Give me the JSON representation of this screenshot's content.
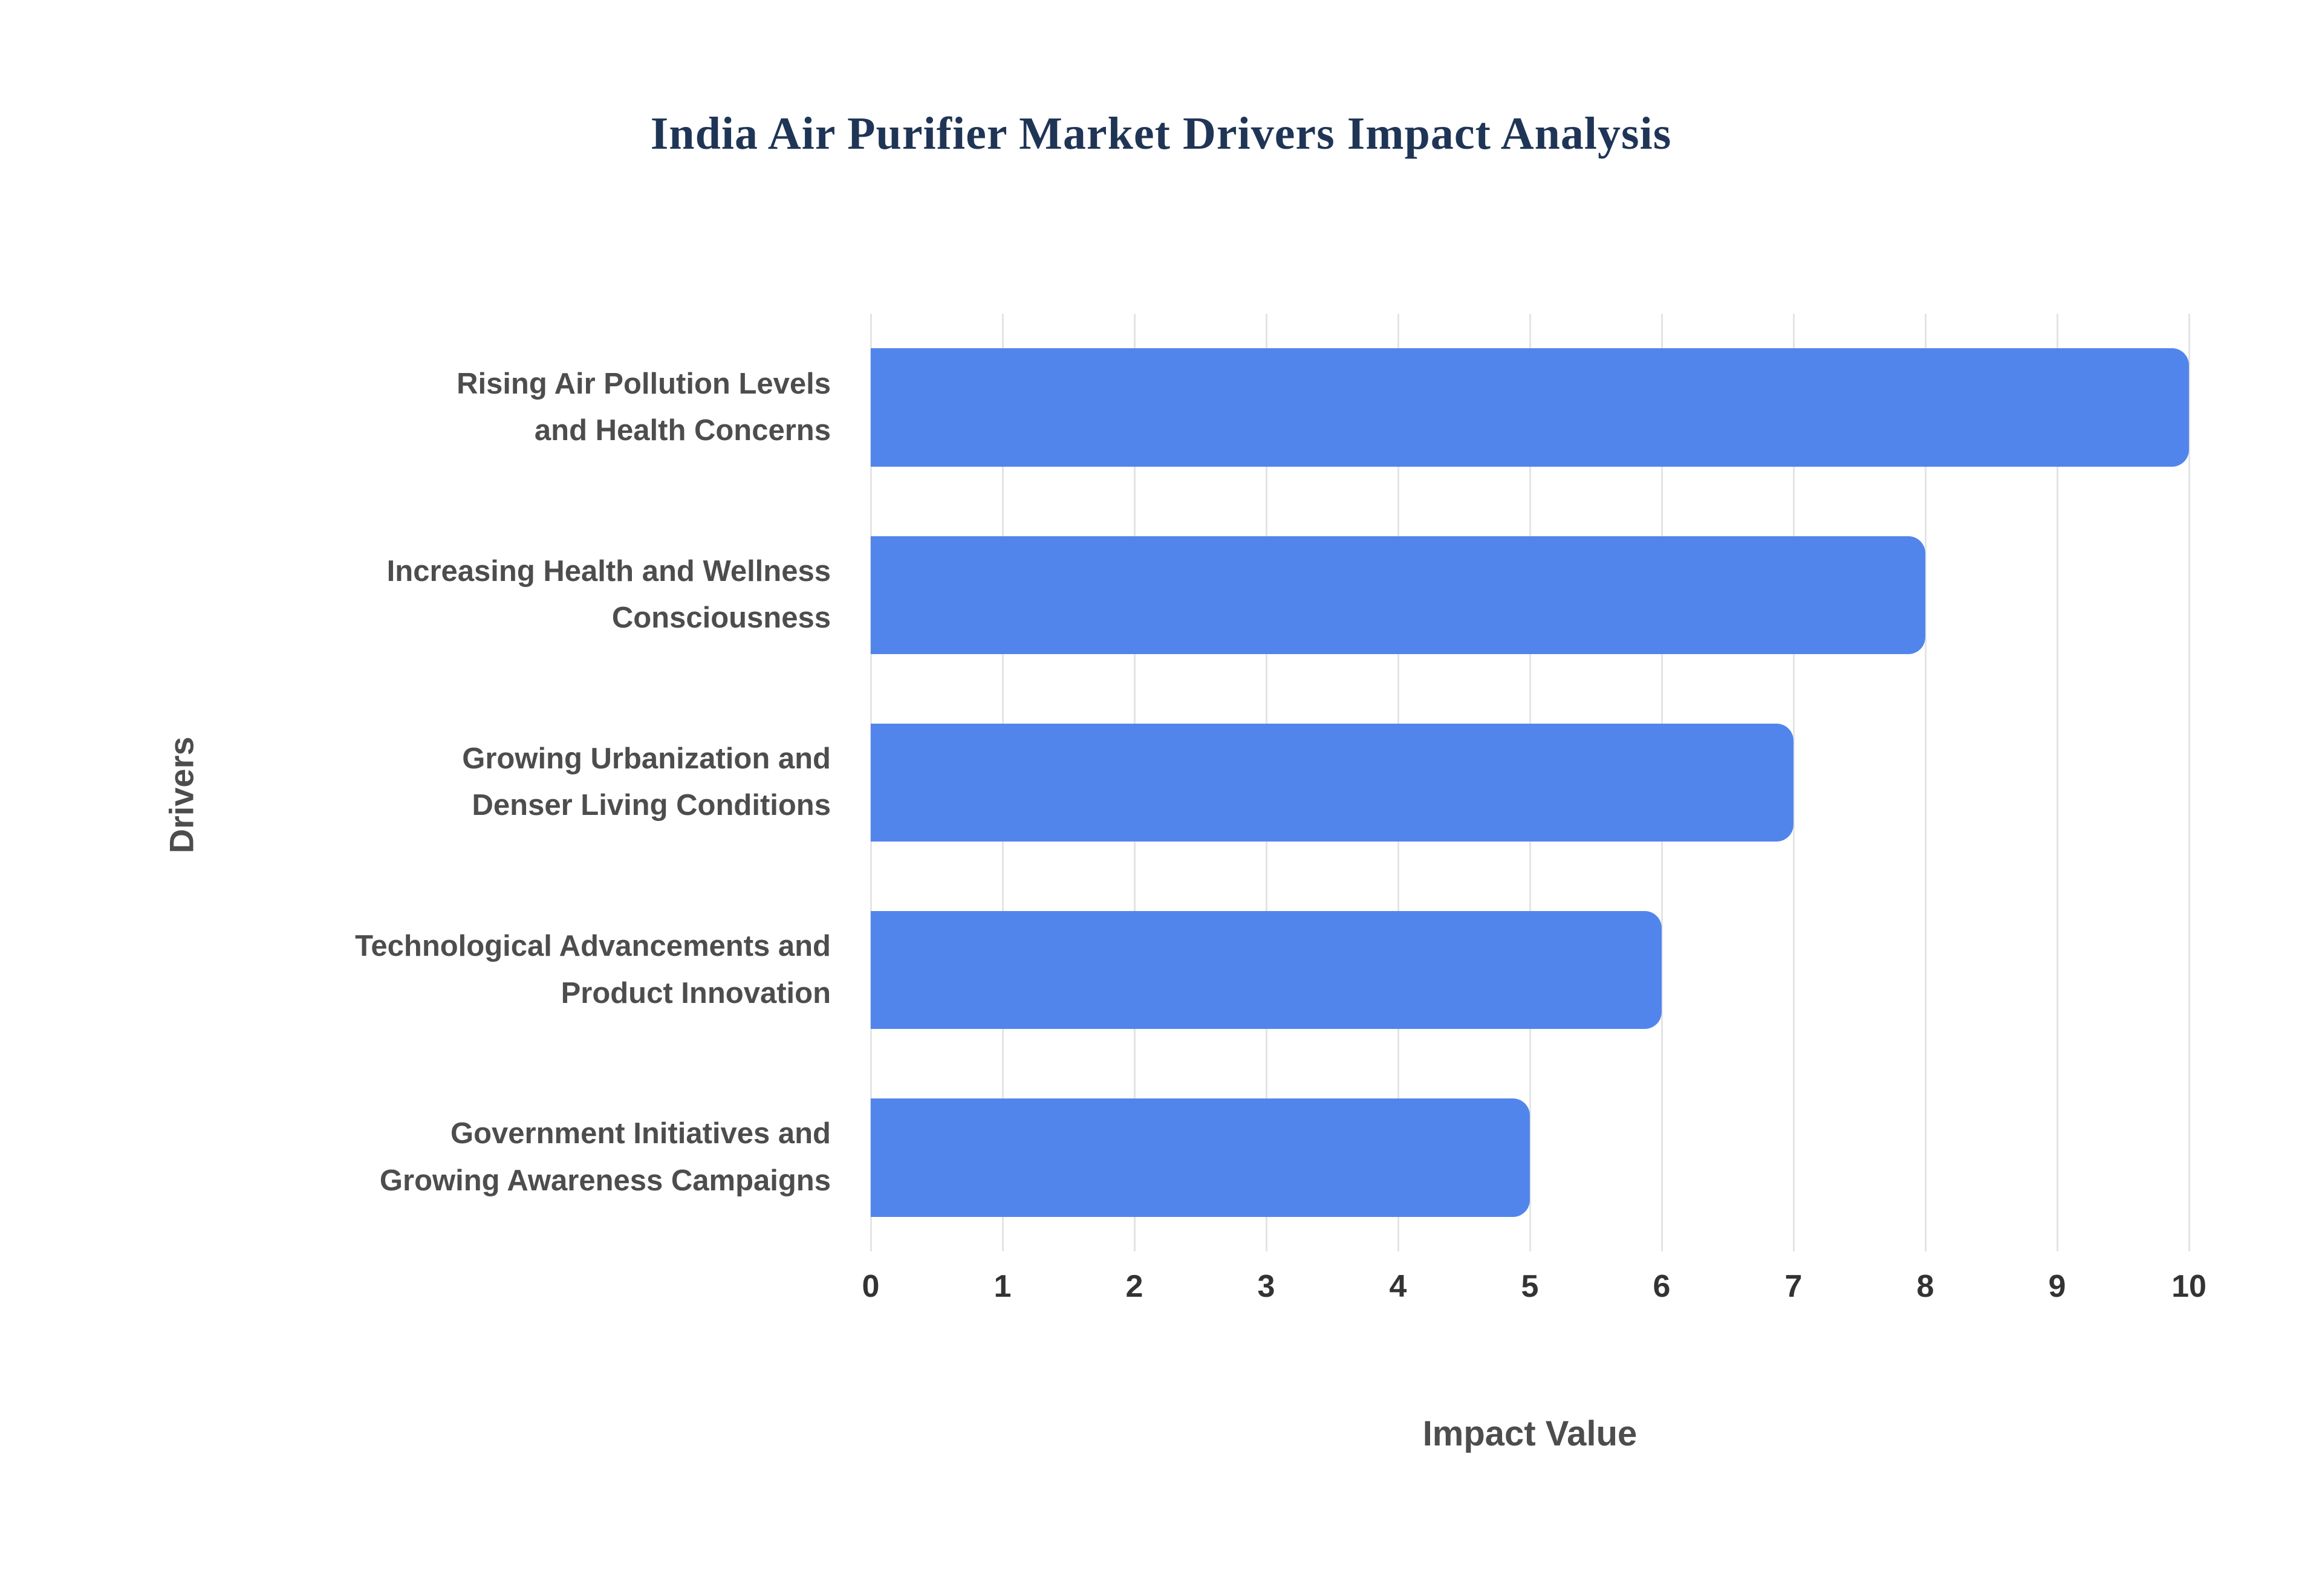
{
  "chart_data": {
    "type": "bar",
    "orientation": "horizontal",
    "title": "India Air Purifier Market Drivers Impact Analysis",
    "categories": [
      "Rising Air Pollution Levels and Health Concerns",
      "Increasing Health and Wellness Consciousness",
      "Growing Urbanization and Denser Living Conditions",
      "Technological Advancements and Product Innovation",
      "Government Initiatives and Growing Awareness Campaigns"
    ],
    "categories_wrapped": [
      [
        "Rising Air Pollution Levels",
        "and Health Concerns"
      ],
      [
        "Increasing Health and Wellness",
        "Consciousness"
      ],
      [
        "Growing Urbanization and",
        "Denser Living Conditions"
      ],
      [
        "Technological Advancements and",
        "Product Innovation"
      ],
      [
        "Government Initiatives and",
        "Growing Awareness Campaigns"
      ]
    ],
    "values": [
      10,
      8,
      7,
      6,
      5
    ],
    "xlabel": "Impact Value",
    "ylabel": "Drivers",
    "xlim": [
      0,
      10
    ],
    "xticks": [
      0,
      1,
      2,
      3,
      4,
      5,
      6,
      7,
      8,
      9,
      10
    ],
    "grid": true,
    "legend": "none",
    "bar_color": "#5285ec",
    "gridline_color": "#e4e4e4",
    "title_color": "#1f3556",
    "label_color": "#4d4d4d",
    "tick_color": "#333333",
    "background_color": "#ffffff"
  }
}
